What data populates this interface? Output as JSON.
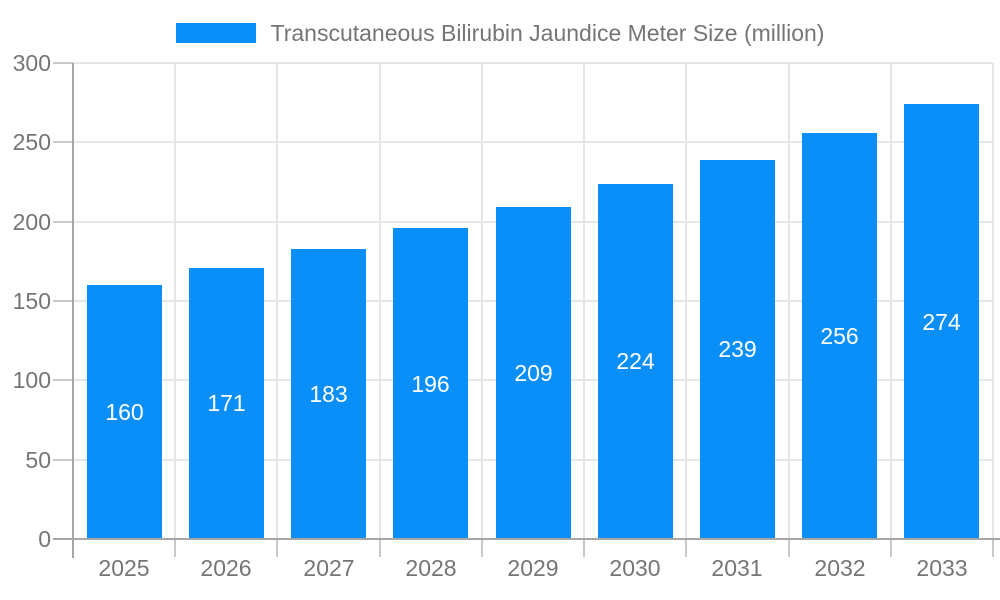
{
  "chart_data": {
    "type": "bar",
    "title": "",
    "legend": "Transcutaneous Bilirubin Jaundice Meter Size (million)",
    "legend_position": "top",
    "categories": [
      "2025",
      "2026",
      "2027",
      "2028",
      "2029",
      "2030",
      "2031",
      "2032",
      "2033"
    ],
    "values": [
      160,
      171,
      183,
      196,
      209,
      224,
      239,
      256,
      274
    ],
    "xlabel": "",
    "ylabel": "",
    "ylim": [
      0,
      300
    ],
    "yticks": [
      0,
      50,
      100,
      150,
      200,
      250,
      300
    ],
    "grid": true,
    "bar_color": "#0a8ff9",
    "value_label_color": "#ffffff",
    "axis_text_color": "#757575",
    "grid_color": "#e6e6e6",
    "tick_color": "#c9c9c9",
    "axis_color": "#a6a6a6"
  }
}
